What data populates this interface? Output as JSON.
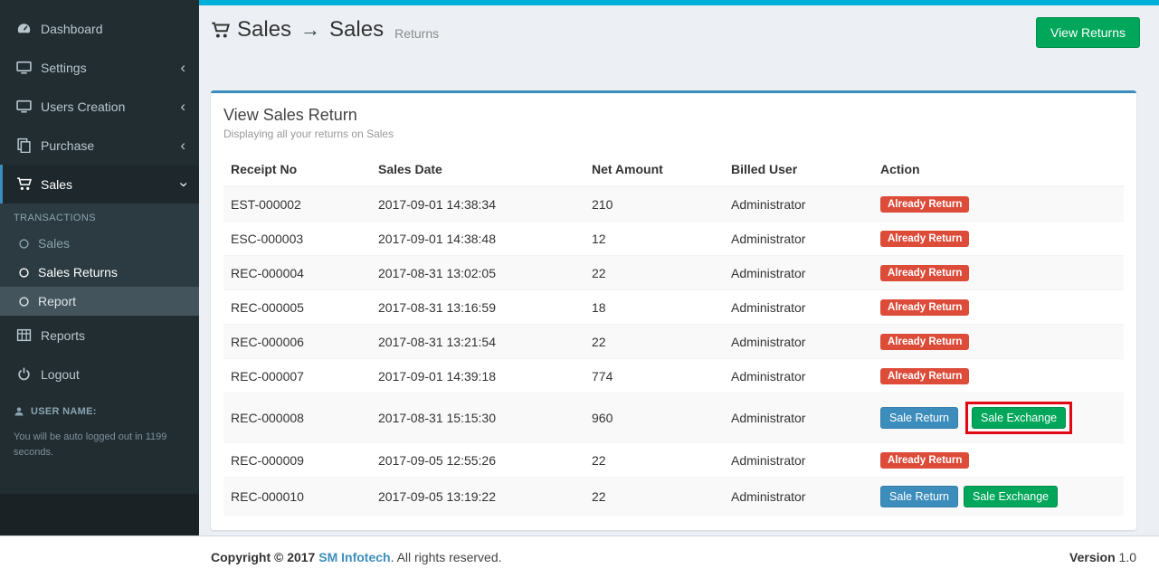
{
  "colors": {
    "topbar": "#00b0d8",
    "sidebar_bg": "#222d32",
    "accent_blue": "#3c8dbc",
    "success_green": "#00a65a",
    "danger_red": "#dd4b39",
    "content_bg": "#ecf0f5",
    "annotation_red": "#e30613"
  },
  "sidebar": {
    "items": [
      {
        "label": "Dashboard",
        "icon": "dashboard-icon",
        "chevron": "none",
        "active": false
      },
      {
        "label": "Settings",
        "icon": "monitor-icon",
        "chevron": "left",
        "active": false
      },
      {
        "label": "Users Creation",
        "icon": "monitor-icon",
        "chevron": "left",
        "active": false
      },
      {
        "label": "Purchase",
        "icon": "copy-icon",
        "chevron": "left",
        "active": false
      },
      {
        "label": "Sales",
        "icon": "cart-icon",
        "chevron": "down",
        "active": true
      }
    ],
    "section_header": "TRANSACTIONS",
    "submenu": [
      {
        "label": "Sales",
        "icon": "circle-icon",
        "active": false
      },
      {
        "label": "Sales Returns",
        "icon": "circle-icon",
        "active": true
      },
      {
        "label": "Report",
        "icon": "circle-icon",
        "active": false
      }
    ],
    "bottom_items": [
      {
        "label": "Reports",
        "icon": "table-icon"
      },
      {
        "label": "Logout",
        "icon": "power-icon"
      }
    ],
    "user_label": "USER NAME:",
    "auto_logout_text": "You will be auto logged out in 1199 seconds."
  },
  "header": {
    "title_primary": "Sales",
    "title_secondary": "Sales",
    "title_small": "Returns",
    "view_returns_button": "View Returns"
  },
  "panel": {
    "title": "View Sales Return",
    "subtitle": "Displaying all your returns on Sales",
    "table": {
      "columns": [
        "Receipt No",
        "Sales Date",
        "Net Amount",
        "Billed User",
        "Action"
      ],
      "rows": [
        {
          "receipt_no": "EST-000002",
          "sales_date": "2017-09-01 14:38:34",
          "net_amount": "210",
          "billed_user": "Administrator",
          "actions": [
            {
              "label": "Already Return",
              "type": "badge-danger"
            }
          ]
        },
        {
          "receipt_no": "ESC-000003",
          "sales_date": "2017-09-01 14:38:48",
          "net_amount": "12",
          "billed_user": "Administrator",
          "actions": [
            {
              "label": "Already Return",
              "type": "badge-danger"
            }
          ]
        },
        {
          "receipt_no": "REC-000004",
          "sales_date": "2017-08-31 13:02:05",
          "net_amount": "22",
          "billed_user": "Administrator",
          "actions": [
            {
              "label": "Already Return",
              "type": "badge-danger"
            }
          ]
        },
        {
          "receipt_no": "REC-000005",
          "sales_date": "2017-08-31 13:16:59",
          "net_amount": "18",
          "billed_user": "Administrator",
          "actions": [
            {
              "label": "Already Return",
              "type": "badge-danger"
            }
          ]
        },
        {
          "receipt_no": "REC-000006",
          "sales_date": "2017-08-31 13:21:54",
          "net_amount": "22",
          "billed_user": "Administrator",
          "actions": [
            {
              "label": "Already Return",
              "type": "badge-danger"
            }
          ]
        },
        {
          "receipt_no": "REC-000007",
          "sales_date": "2017-09-01 14:39:18",
          "net_amount": "774",
          "billed_user": "Administrator",
          "actions": [
            {
              "label": "Already Return",
              "type": "badge-danger"
            }
          ]
        },
        {
          "receipt_no": "REC-000008",
          "sales_date": "2017-08-31 15:15:30",
          "net_amount": "960",
          "billed_user": "Administrator",
          "actions": [
            {
              "label": "Sale Return",
              "type": "btn-primary"
            },
            {
              "label": "Sale Exchange",
              "type": "btn-success",
              "highlighted": true
            }
          ]
        },
        {
          "receipt_no": "REC-000009",
          "sales_date": "2017-09-05 12:55:26",
          "net_amount": "22",
          "billed_user": "Administrator",
          "actions": [
            {
              "label": "Already Return",
              "type": "badge-danger"
            }
          ]
        },
        {
          "receipt_no": "REC-000010",
          "sales_date": "2017-09-05 13:19:22",
          "net_amount": "22",
          "billed_user": "Administrator",
          "actions": [
            {
              "label": "Sale Return",
              "type": "btn-primary"
            },
            {
              "label": "Sale Exchange",
              "type": "btn-success"
            }
          ]
        }
      ]
    }
  },
  "footer": {
    "copyright_bold": "Copyright © 2017",
    "company": "SM Infotech",
    "copyright_rest": ". All rights reserved.",
    "version_label": "Version",
    "version_number": "1.0"
  }
}
